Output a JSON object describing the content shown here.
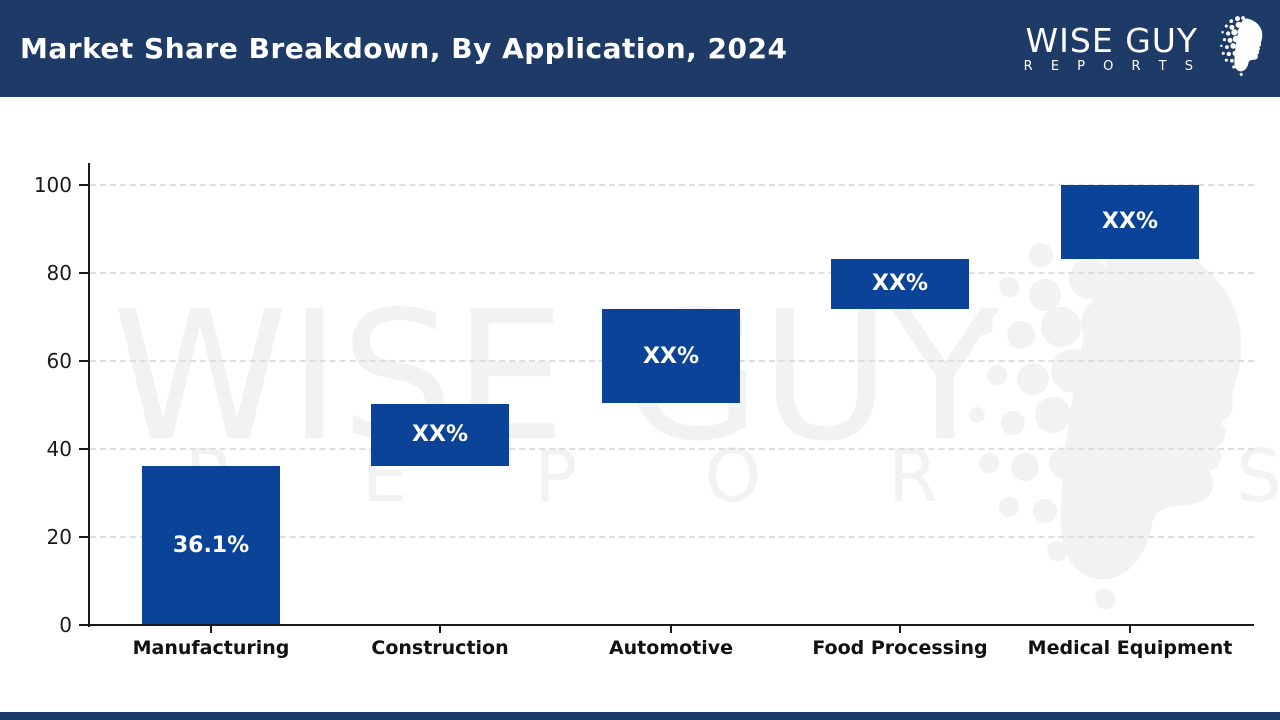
{
  "header": {
    "title": "Market Share Breakdown, By Application, 2024",
    "logo": {
      "line1": "WISE GUY",
      "line2": "R E P O R T S"
    }
  },
  "watermark": {
    "line1": "WISE GUY",
    "line2": "R E P O R T S"
  },
  "chart_data": {
    "type": "bar",
    "variant": "floating-segment-waterfall",
    "title": "Market Share Breakdown, By Application, 2024",
    "categories": [
      "Manufacturing",
      "Construction",
      "Automotive",
      "Food Processing",
      "Medical Equipment"
    ],
    "segments": [
      {
        "category": "Manufacturing",
        "start": 0,
        "end": 36.1,
        "label": "36.1%"
      },
      {
        "category": "Construction",
        "start": 36.1,
        "end": 50.3,
        "label": "XX%"
      },
      {
        "category": "Automotive",
        "start": 50.4,
        "end": 71.8,
        "label": "XX%"
      },
      {
        "category": "Food Processing",
        "start": 71.8,
        "end": 83.2,
        "label": "XX%"
      },
      {
        "category": "Medical Equipment",
        "start": 83.2,
        "end": 100,
        "label": "XX%"
      }
    ],
    "xlabel": "",
    "ylabel": "",
    "ylim": [
      0,
      100
    ],
    "y_ticks": [
      0,
      20,
      40,
      60,
      80,
      100
    ],
    "grid": "horizontal-dashed",
    "legend": "none",
    "colors": {
      "bar": "#0a4397",
      "bar_label": "#ffffff",
      "header_bg": "#1e3a66",
      "footer_bg": "#1e3a66",
      "grid": "#dedede",
      "axis": "#1a1a1a",
      "watermark": "#f2f2f2"
    }
  }
}
